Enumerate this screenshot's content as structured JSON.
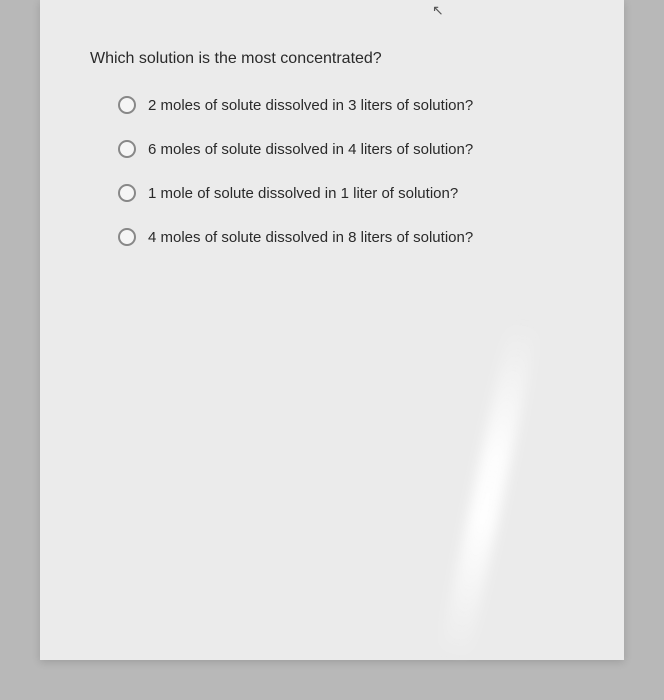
{
  "question": {
    "prompt": "Which solution is the most concentrated?",
    "options": [
      {
        "label": "2 moles of solute dissolved in 3 liters of solution?"
      },
      {
        "label": "6 moles of solute dissolved in 4 liters of solution?"
      },
      {
        "label": "1 mole of solute dissolved in 1 liter of solution?"
      },
      {
        "label": "4 moles of solute dissolved in 8 liters of solution?"
      }
    ]
  },
  "styling": {
    "page_background": "#b8b8b8",
    "card_background": "#ebebeb",
    "text_color": "#2a2a2a",
    "radio_border": "#888",
    "question_fontsize": 16,
    "option_fontsize": 15,
    "option_spacing": 26
  }
}
